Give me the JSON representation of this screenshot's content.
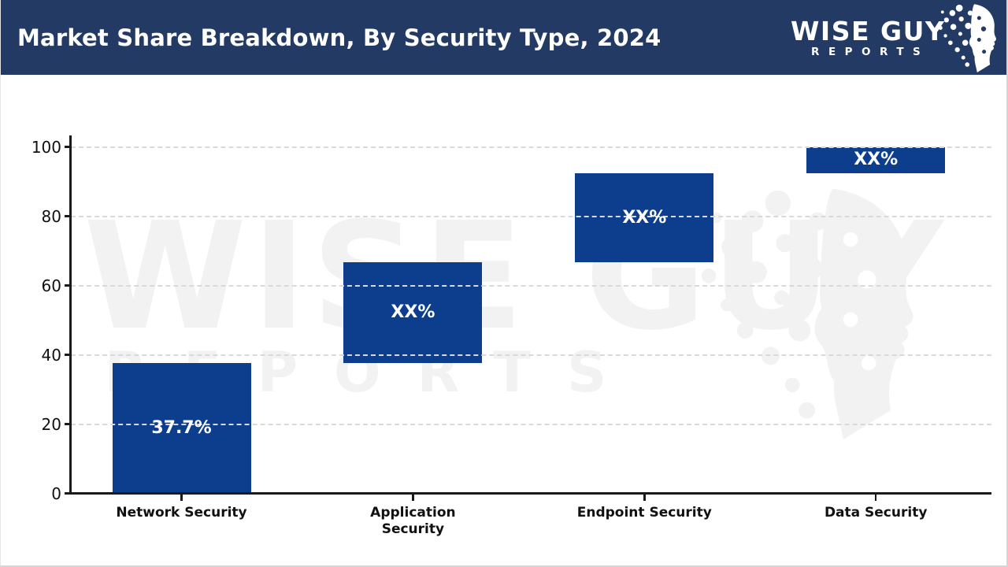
{
  "header": {
    "title": "Market Share Breakdown, By Security Type, 2024",
    "logo": {
      "line1": "WISE GUY",
      "line2": "REPORTS"
    }
  },
  "watermark": {
    "line1": "WISE GUY",
    "line2": "REPORTS"
  },
  "icons": {
    "logo_face": "dotted-head-profile-icon",
    "watermark_face": "dotted-head-profile-icon"
  },
  "colors": {
    "header_bg": "#223a64",
    "bar": "#0c3e8d",
    "grid": "#d9d9d9",
    "axis": "#1a1a1a",
    "watermark": "#f2f2f2"
  },
  "chart_data": {
    "type": "bar",
    "subtype": "waterfall",
    "title": "Market Share Breakdown, By Security Type, 2024",
    "categories": [
      "Network Security",
      "Application\nSecurity",
      "Endpoint Security",
      "Data Security"
    ],
    "segments": [
      {
        "category": "Network Security",
        "start": 0,
        "end": 37.7,
        "label": "37.7%"
      },
      {
        "category": "Application Security",
        "start": 37.7,
        "end": 66.6,
        "label": "XX%"
      },
      {
        "category": "Endpoint Security",
        "start": 66.6,
        "end": 92.3,
        "label": "XX%"
      },
      {
        "category": "Data Security",
        "start": 92.3,
        "end": 100,
        "label": "XX%"
      }
    ],
    "ylim": [
      0,
      100
    ],
    "yticks": [
      0,
      20,
      40,
      60,
      80,
      100
    ],
    "ytick_labels": [
      "0",
      "20",
      "40",
      "60",
      "80",
      "100"
    ],
    "grid": "horizontal-dashed",
    "legend": false,
    "bar_color": "#0c3e8d"
  }
}
